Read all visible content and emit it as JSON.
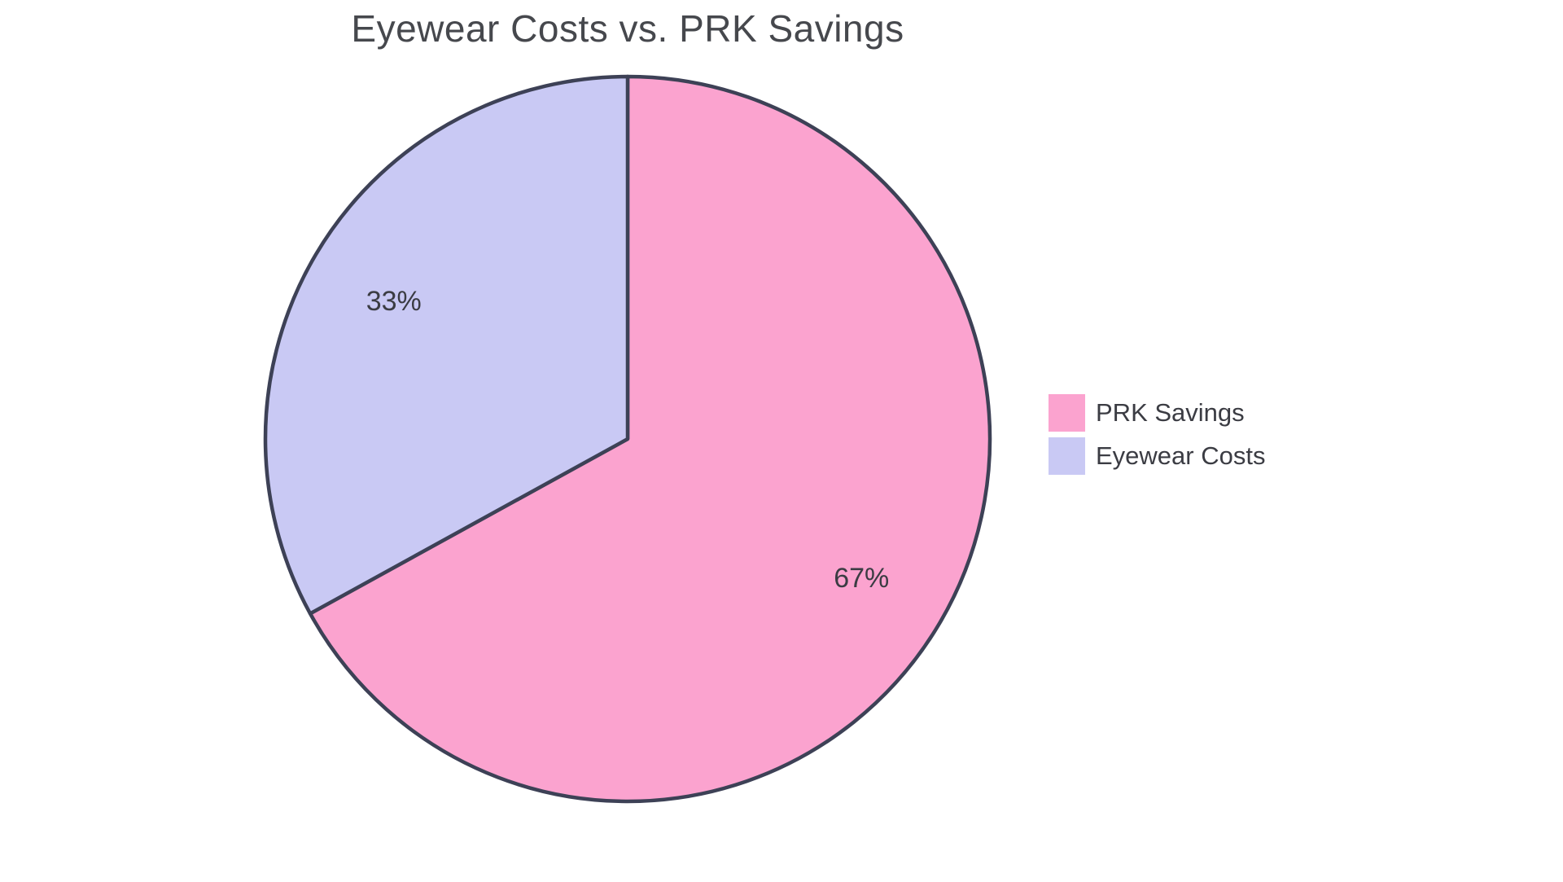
{
  "chart_data": {
    "type": "pie",
    "title": "Eyewear Costs vs. PRK Savings",
    "labels": [
      "PRK Savings",
      "Eyewear Costs"
    ],
    "values": [
      67,
      33
    ],
    "percent_labels": [
      "67%",
      "33%"
    ],
    "colors": [
      "#FBA3CF",
      "#C9C9F4"
    ],
    "edge_color": "#3D4156",
    "edge_width": 4.5,
    "start_angle": "top",
    "direction": "clockwise",
    "pct_distance": 0.75,
    "legend_position": "right",
    "background": "#FFFFFF",
    "title_color": "#46484D",
    "label_color": "#3B3C43"
  }
}
